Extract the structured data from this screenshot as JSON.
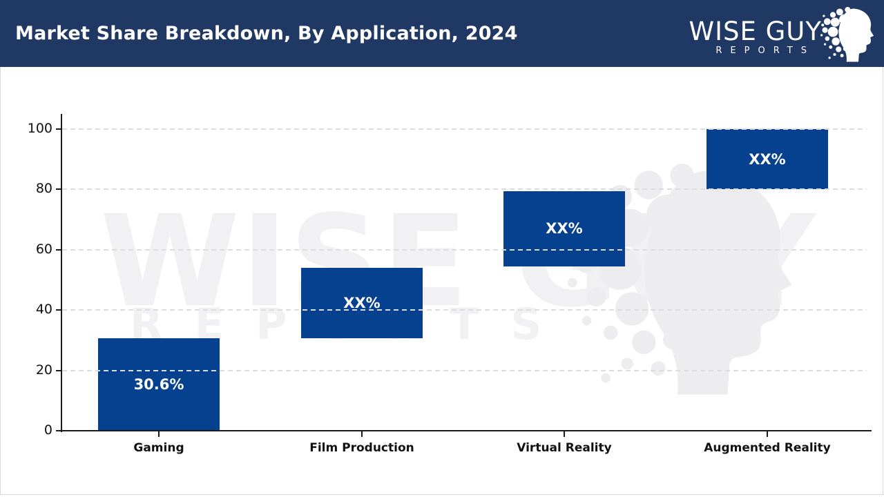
{
  "header": {
    "title": "Market Share Breakdown, By Application, 2024",
    "logo_line1": "WISE GUY",
    "logo_line2": "REPORTS",
    "bg_color": "#1f3864"
  },
  "watermark": {
    "line1": "WISE GUY",
    "line2": "REPORTS"
  },
  "chart_data": {
    "type": "bar",
    "subtype": "floating-segment-waterfall",
    "title": "Market Share Breakdown, By Application, 2024",
    "categories": [
      "Gaming",
      "Film Production",
      "Virtual Reality",
      "Augmented Reality"
    ],
    "segments": [
      {
        "category": "Gaming",
        "start": 0,
        "end": 30.6,
        "label": "30.6%"
      },
      {
        "category": "Film Production",
        "start": 30.6,
        "end": 54.0,
        "label": "XX%"
      },
      {
        "category": "Virtual Reality",
        "start": 54.5,
        "end": 79.5,
        "label": "XX%"
      },
      {
        "category": "Augmented Reality",
        "start": 80.0,
        "end": 100.0,
        "label": "XX%"
      }
    ],
    "xlabel": "",
    "ylabel": "",
    "ylim": [
      0,
      100
    ],
    "yticks": [
      0,
      20,
      40,
      60,
      80,
      100
    ],
    "grid": "horizontal-dashed",
    "grid_above_bars": true,
    "legend": "none",
    "bar_color": "#05418f",
    "bar_label_color": "#ffffff",
    "axis_color": "#1a1a1a",
    "gridline_color": "#dcdcdc"
  }
}
